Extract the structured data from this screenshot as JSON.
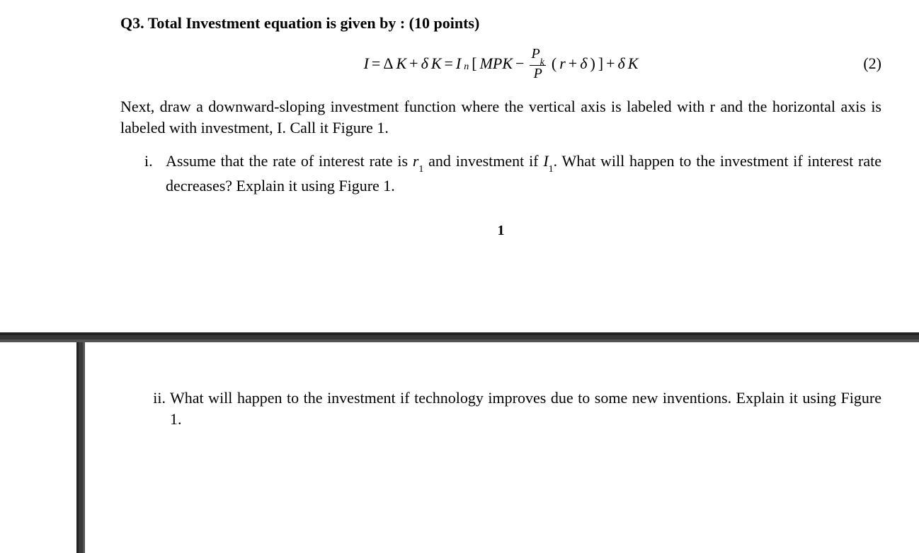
{
  "question": {
    "number": "Q3.",
    "title_text": "Total Investment equation is given by : (10 points)"
  },
  "equation": {
    "label": "(2)",
    "lhs1": "I",
    "eq": "=",
    "delta": "Δ",
    "K": "K",
    "plus": "+",
    "small_delta": "δ",
    "I_n": "I",
    "n_sub": "n",
    "lbr": "[",
    "MPK": "MPK",
    "minus": "−",
    "frac_num_P": "P",
    "frac_num_k": "k",
    "frac_den": "P",
    "lpar": "(",
    "r": "r",
    "rpar": ")",
    "rbr": "]"
  },
  "intro_para": "Next, draw a downward-sloping investment function where the vertical axis is labeled with r and the horizontal axis is labeled with investment, I. Call it Figure 1.",
  "items": {
    "i": {
      "marker": "i.",
      "pre": "Assume that the rate of interest rate is ",
      "r1": "r",
      "r1_sub": "1",
      "mid1": " and investment if ",
      "I1": "I",
      "I1_sub": "1",
      "after": ". What will happen to the investment if interest rate decreases? Explain it using Figure 1."
    },
    "ii": {
      "marker": "ii.",
      "text": "What will happen to the investment if technology improves due to some new inventions. Explain it using Figure 1."
    }
  },
  "page_number": "1"
}
